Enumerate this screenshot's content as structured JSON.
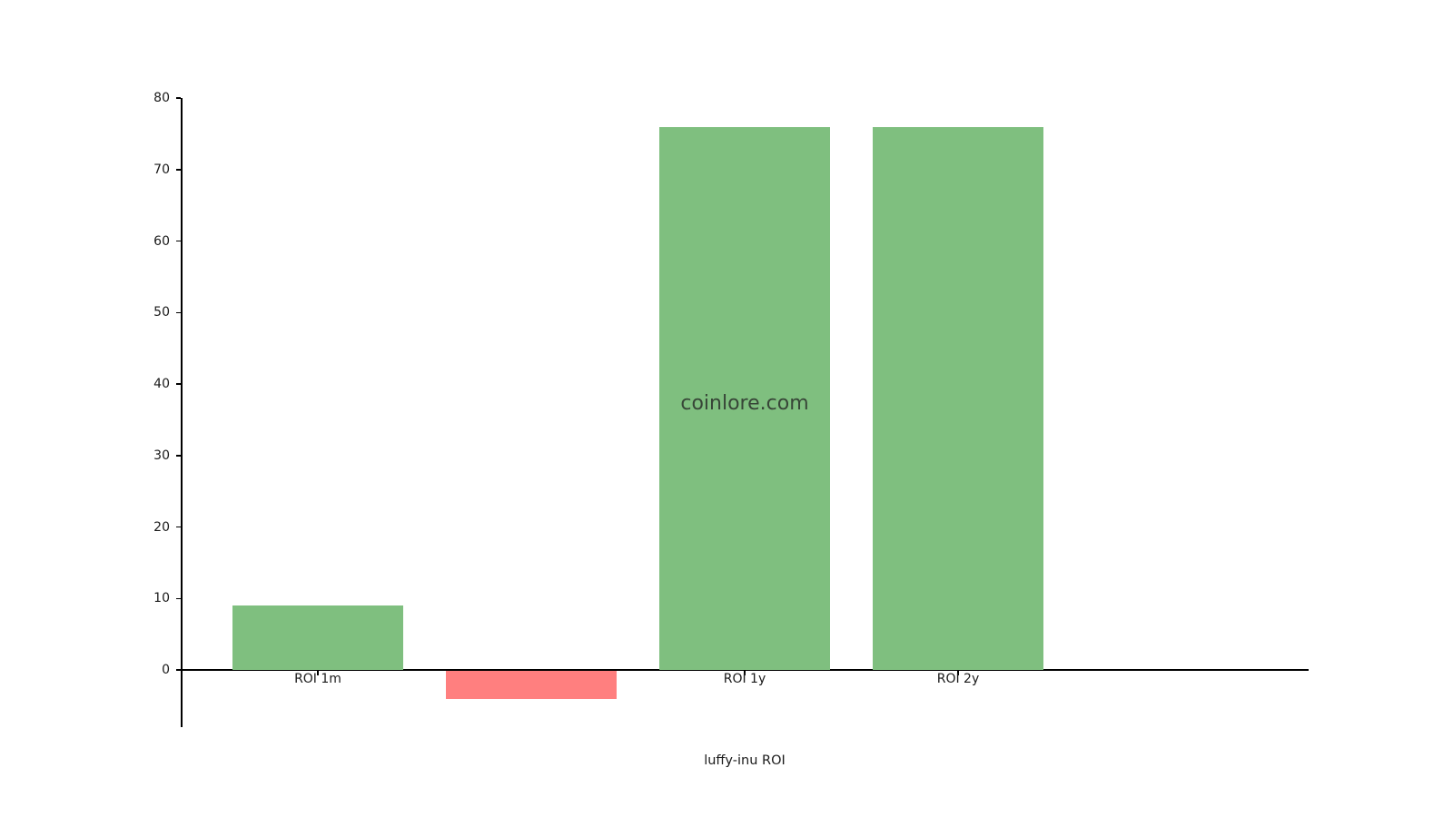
{
  "page": {
    "background_color": "#ffffff"
  },
  "watermark": {
    "text": "coinlore.com",
    "color": "#2d342d"
  },
  "chart_data": {
    "type": "bar",
    "title": "",
    "xlabel": "luffy-inu ROI",
    "ylabel": "",
    "categories": [
      "ROI 1m",
      "",
      "ROI 1y",
      "ROI 2y"
    ],
    "values": [
      9,
      -4,
      76,
      76
    ],
    "bar_colors": [
      "#7fbf7f",
      "#ff7f7f",
      "#7fbf7f",
      "#7fbf7f"
    ],
    "positive_color": "#7fbf7f",
    "negative_color": "#ff7f7f",
    "yticks": [
      0,
      10,
      20,
      30,
      40,
      50,
      60,
      70,
      80
    ],
    "ylim": [
      -8,
      80
    ],
    "grid": false,
    "legend_position": "none",
    "axis_color": "#000000",
    "tick_label_color": "#1a1a1a"
  }
}
